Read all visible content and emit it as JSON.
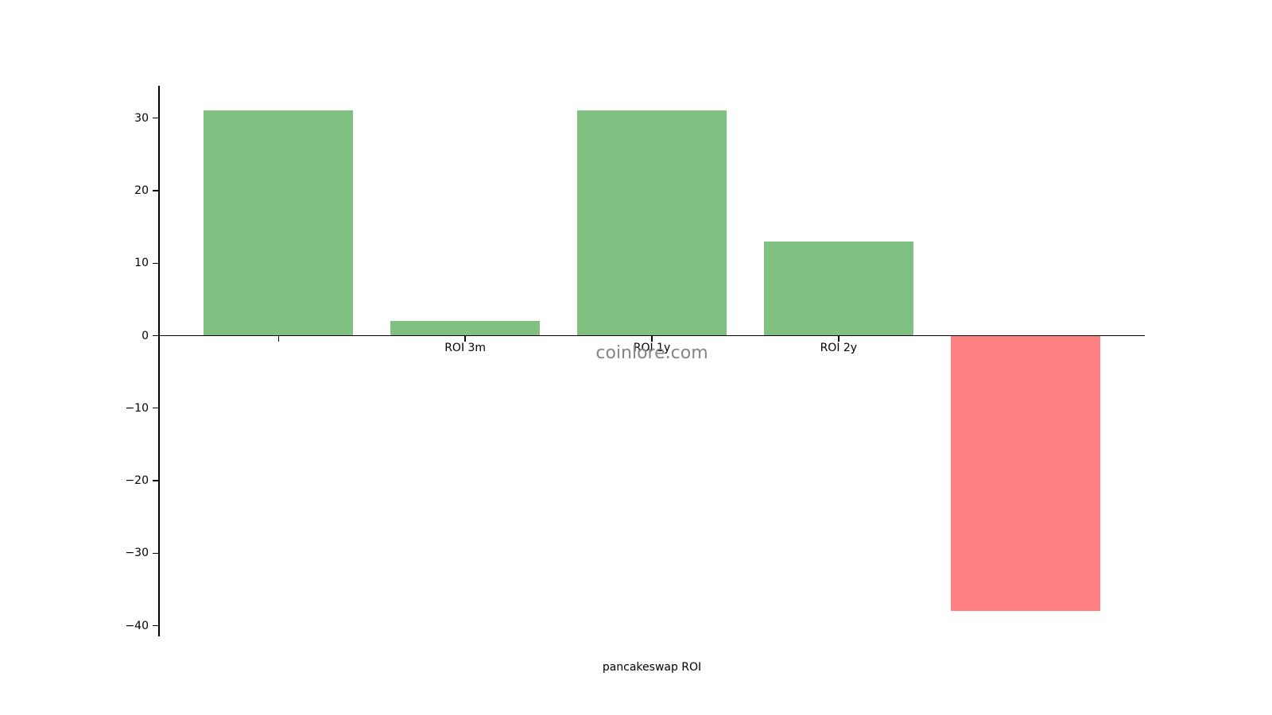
{
  "watermark": {
    "text": "coinlore.com",
    "color": "#858585"
  },
  "chart_data": {
    "type": "bar",
    "title": "",
    "xlabel": "pancakeswap ROI",
    "ylabel": "",
    "categories": [
      "",
      "ROI 3m",
      "ROI 1y",
      "ROI 2y",
      ""
    ],
    "values": [
      31,
      2,
      31,
      13,
      -38
    ],
    "bar_colors": [
      "#80c080",
      "#80c080",
      "#80c080",
      "#80c080",
      "#ff8080"
    ],
    "positive_color": "#80c080",
    "negative_color": "#ff8080",
    "axis_color": "#000000",
    "yticks": [
      30,
      20,
      10,
      0,
      -10,
      -20,
      -30,
      -40
    ],
    "ylim": [
      -41.5,
      34.5
    ],
    "grid": false,
    "legend": "none"
  }
}
